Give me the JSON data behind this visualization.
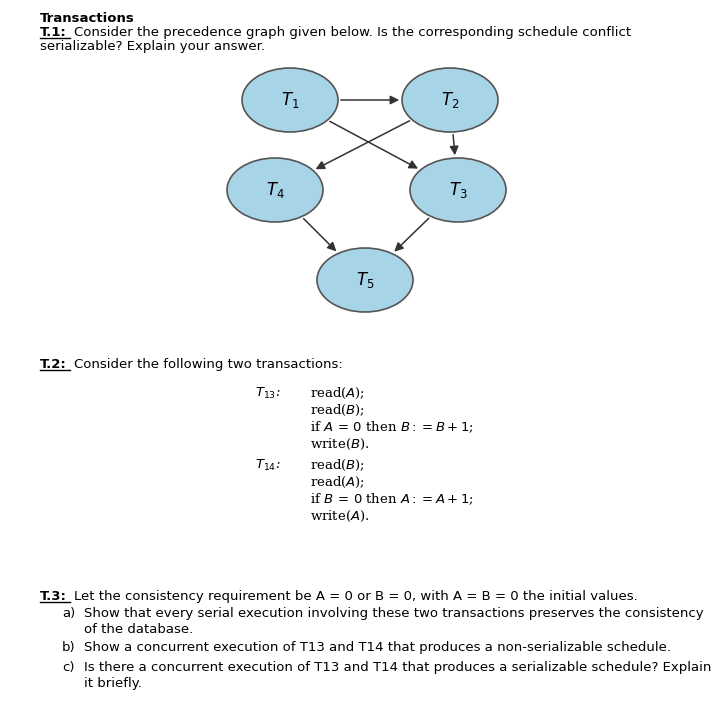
{
  "title": "Transactions",
  "node_labels": {
    "T1": "$T_1$",
    "T2": "$T_2$",
    "T4": "$T_4$",
    "T3": "$T_3$",
    "T5": "$T_5$"
  },
  "edges": [
    [
      "T1",
      "T2"
    ],
    [
      "T1",
      "T3"
    ],
    [
      "T2",
      "T4"
    ],
    [
      "T2",
      "T3"
    ],
    [
      "T4",
      "T5"
    ],
    [
      "T3",
      "T5"
    ]
  ],
  "node_color": "#a8d4e8",
  "node_edge_color": "#555555",
  "arrow_color": "#333333",
  "bg_color": "#ffffff"
}
